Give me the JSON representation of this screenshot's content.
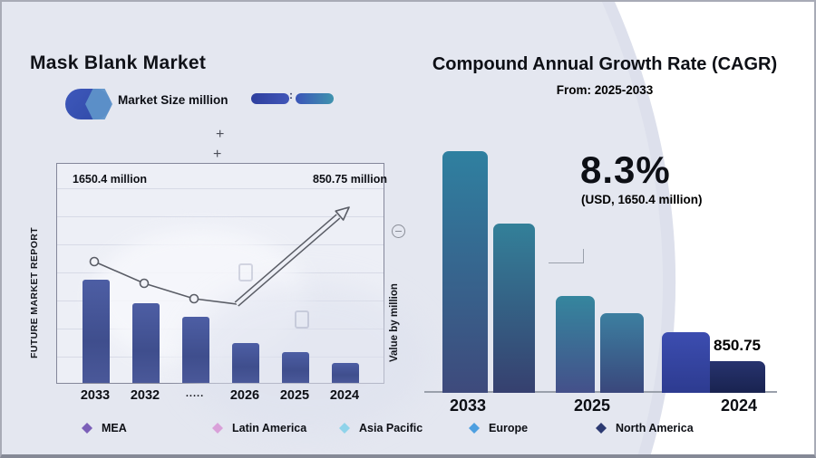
{
  "header": {
    "title": "Mask Blank  Market",
    "series_label": "Market Size million",
    "ratio_separator": ":",
    "plus_marks": [
      "+",
      "+"
    ]
  },
  "right_header": {
    "title": "Compound Annual Growth Rate (CAGR)",
    "subtitle": "From: 2025-2033",
    "cagr_value": "8.3%",
    "cagr_basis": "(USD, 1650.4 million)"
  },
  "side_labels": {
    "left_watermark": "FUTURE MARKET REPORT",
    "value_axis": "Value by million"
  },
  "chart_data": [
    {
      "type": "bar",
      "name": "market-size-by-year",
      "title": "Mask Blank Market - Market Size million",
      "categories": [
        "2033",
        "2032",
        ".....",
        "2026",
        "2025",
        "2024"
      ],
      "values_relative": [
        1.0,
        0.77,
        0.64,
        0.39,
        0.3,
        0.19
      ],
      "labeled_values": {
        "2033": "1650.4 million",
        "2024": "850.75 million"
      },
      "annotation_top_left": "1650.4 million",
      "annotation_top_right": "850.75 million",
      "trend": "declining marker line from 2033 to 2026 then upward outline arrow",
      "grid": true,
      "legend_position": "none"
    },
    {
      "type": "bar",
      "name": "cagr-value-by-year",
      "categories": [
        "2033",
        "2025",
        "2024"
      ],
      "series": [
        {
          "name": "bar-1",
          "values_relative": [
            1.0,
            0.4,
            0.25
          ]
        },
        {
          "name": "bar-2",
          "values_relative": [
            0.7,
            0.33,
            0.13
          ]
        }
      ],
      "ylabel": "Value by million",
      "annotation_2024": "850.75",
      "grid": false,
      "legend_position": "none"
    }
  ],
  "legend": {
    "items": [
      {
        "label": "MEA",
        "color": "#7b5fb8"
      },
      {
        "label": "Latin America",
        "color": "#d9a0d9"
      },
      {
        "label": "Asia Pacific",
        "color": "#8fd3ea"
      },
      {
        "label": "Europe",
        "color": "#4d9fe0"
      },
      {
        "label": "North America",
        "color": "#2c3a72"
      }
    ]
  },
  "colors": {
    "background": "#ffffff",
    "panel": "#e4e7f0",
    "chart_box_bg": "#edeff6",
    "chart_box_border": "#84879a",
    "left_bar_gradient": [
      "#4d5ea4",
      "#3f4e8d"
    ],
    "right_bar_gradients": [
      [
        "#2f80a0",
        "#3e4a7c"
      ],
      [
        "#338099",
        "#36406f"
      ],
      [
        "#35869e",
        "#44508a"
      ],
      [
        "#3c7fa0",
        "#3a477c"
      ],
      [
        "#3c4db0",
        "#2d3b90"
      ],
      [
        "#27336e",
        "#192350"
      ]
    ],
    "trend_line": "#5a5d66",
    "capsule_gradient": [
      "#3e58bb",
      "#2f49a6"
    ],
    "capsule_hex": "#5e92c9",
    "pill_left_gradient": [
      "#2e3f9e",
      "#4156b8"
    ],
    "pill_right_gradient": [
      "#3b55b8",
      "#3f93ae"
    ]
  }
}
